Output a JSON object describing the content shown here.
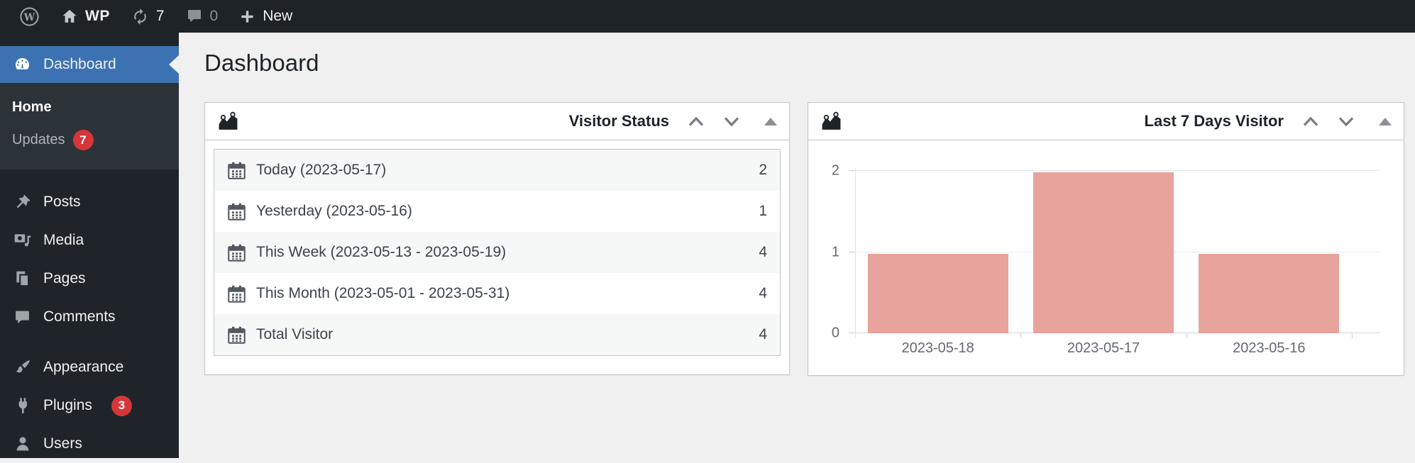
{
  "admin_bar": {
    "site_name": "WP",
    "updates_count": "7",
    "comments_count": "0",
    "new_label": "New"
  },
  "sidebar": {
    "dashboard": {
      "label": "Dashboard"
    },
    "submenu": {
      "home_label": "Home",
      "updates_label": "Updates",
      "updates_badge": "7"
    },
    "items": [
      {
        "id": "posts",
        "label": "Posts"
      },
      {
        "id": "media",
        "label": "Media"
      },
      {
        "id": "pages",
        "label": "Pages"
      },
      {
        "id": "comments",
        "label": "Comments"
      },
      {
        "id": "appearance",
        "label": "Appearance"
      },
      {
        "id": "plugins",
        "label": "Plugins",
        "badge": "3"
      },
      {
        "id": "users",
        "label": "Users"
      }
    ]
  },
  "page": {
    "title": "Dashboard"
  },
  "widgets": {
    "visitor_status": {
      "title": "Visitor Status",
      "rows": [
        {
          "label": "Today (2023-05-17)",
          "value": "2"
        },
        {
          "label": "Yesterday (2023-05-16)",
          "value": "1"
        },
        {
          "label": "This Week (2023-05-13 - 2023-05-19)",
          "value": "4"
        },
        {
          "label": "This Month (2023-05-01 - 2023-05-31)",
          "value": "4"
        },
        {
          "label": "Total Visitor",
          "value": "4"
        }
      ]
    },
    "last_7_days": {
      "title": "Last 7 Days Visitor"
    }
  },
  "chart_data": {
    "type": "bar",
    "categories": [
      "2023-05-18",
      "2023-05-17",
      "2023-05-16"
    ],
    "values": [
      1,
      2,
      1
    ],
    "title": "Last 7 Days Visitor",
    "xlabel": "",
    "ylabel": "",
    "ylim": [
      0,
      2
    ],
    "yticks": [
      0,
      1,
      2
    ],
    "bar_color": "#e7a39c",
    "grid": true,
    "legend": "none"
  },
  "colors": {
    "accent_blue": "#3c72b1",
    "badge_red": "#d63638",
    "bar_fill": "#e7a39c"
  }
}
